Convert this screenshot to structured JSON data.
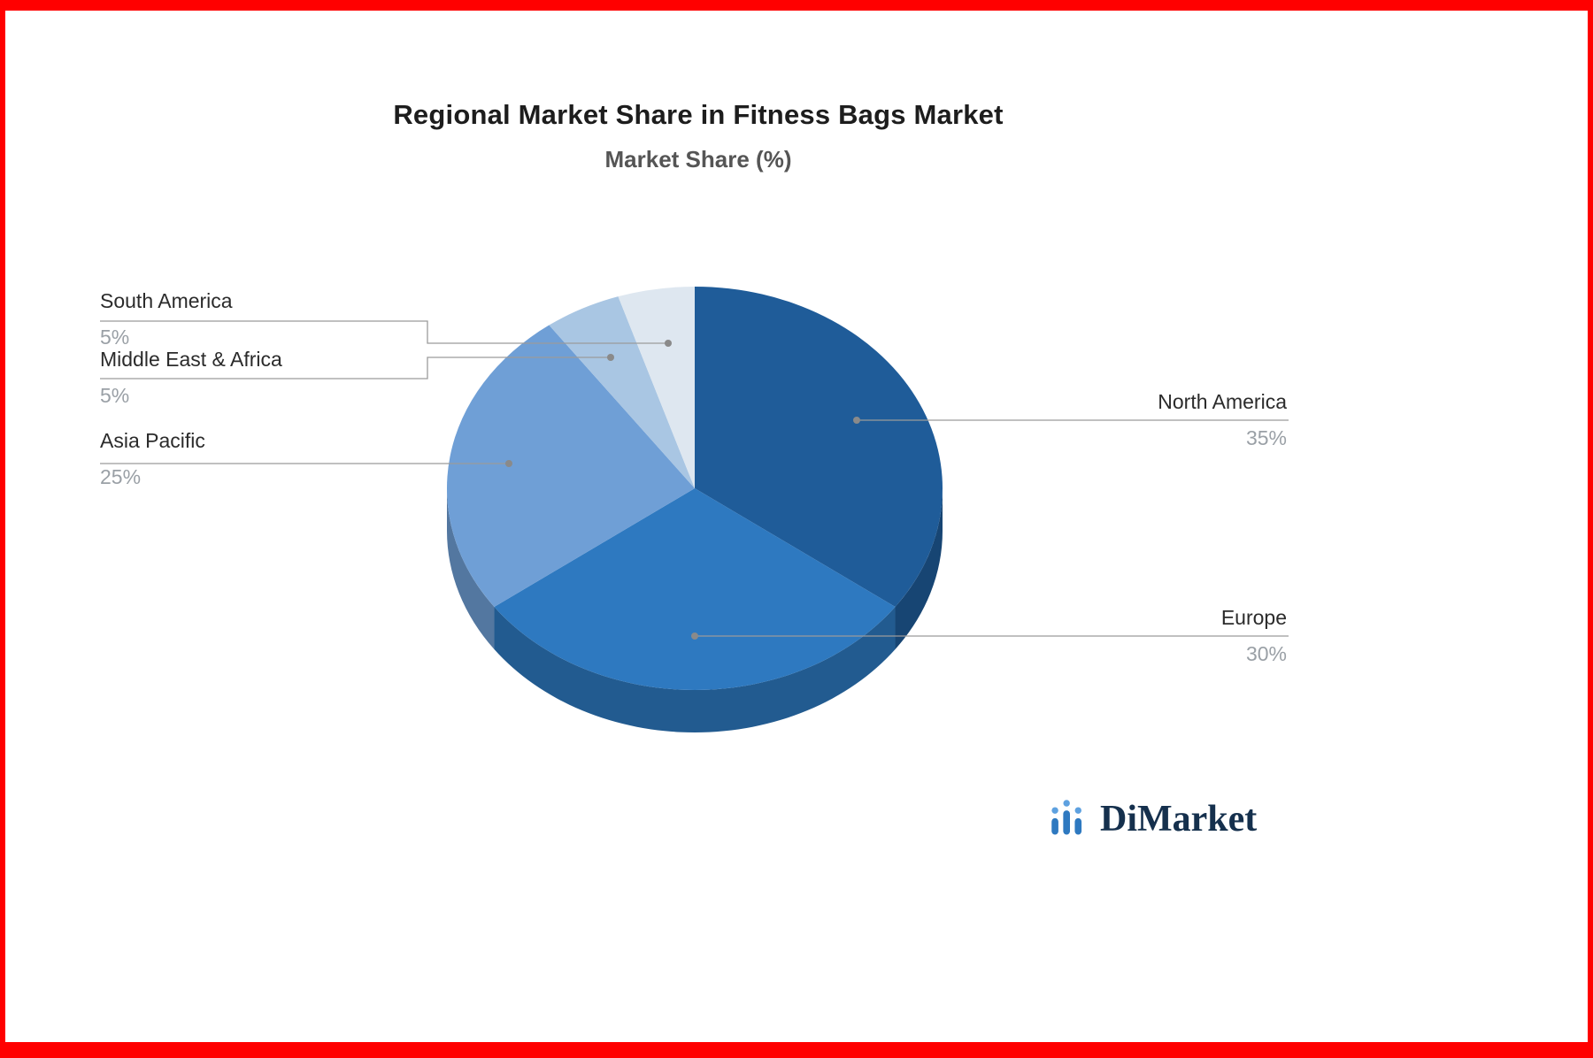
{
  "chart_data": {
    "type": "pie",
    "style": "3d",
    "title": "Regional Market Share in Fitness Bags Market",
    "subtitle": "Market Share (%)",
    "unit": "%",
    "start_angle": "12 o'clock",
    "direction": "clockwise",
    "labels": [
      "North America",
      "Europe",
      "Asia Pacific",
      "Middle East & Africa",
      "South America"
    ],
    "values": [
      35,
      30,
      25,
      5,
      5
    ],
    "display_values": [
      "35%",
      "30%",
      "25%",
      "5%",
      "5%"
    ],
    "colors": [
      "#1f5c99",
      "#2e79c0",
      "#6f9fd6",
      "#a9c6e3",
      "#dee7f0"
    ],
    "side_colors": [
      "#174573",
      "#225b90",
      "#5377a0",
      "#7e94aa",
      "#a6adb5"
    ],
    "legend": "none",
    "callout_line_color": "#9b9b9b",
    "callout_dot_color": "#8a8a8a"
  },
  "logo": {
    "text": "DiMarket",
    "icon": "bar-chart-icon",
    "text_color": "#15304d",
    "icon_color": "#2e79c0"
  },
  "frame": {
    "border_color": "#ff0000",
    "background": "#ffffff"
  }
}
